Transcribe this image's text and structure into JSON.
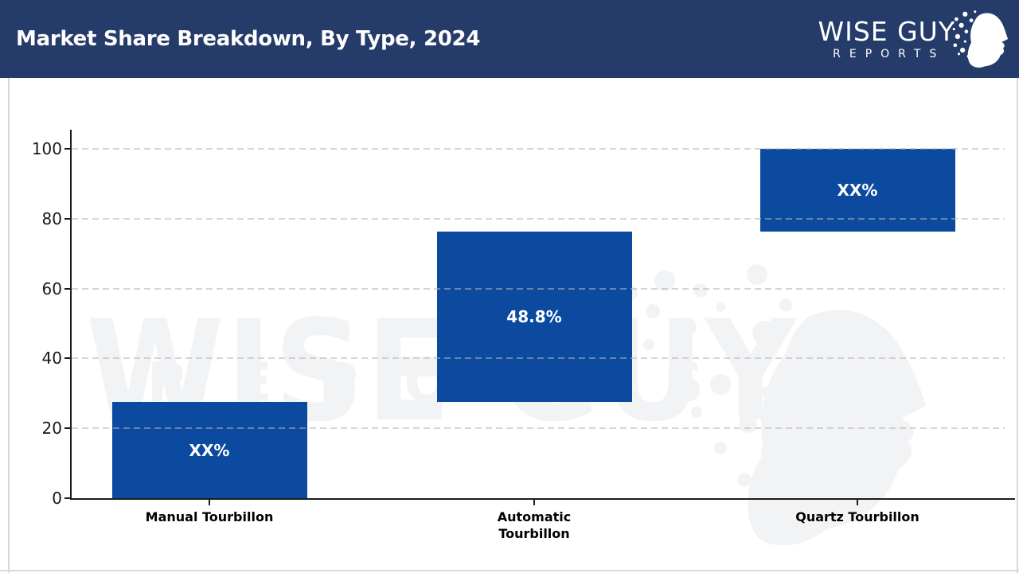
{
  "header": {
    "title": "Market Share Breakdown, By Type, 2024",
    "brand": {
      "name": "WISE GUY",
      "tagline": "REPORTS"
    }
  },
  "watermark": {
    "line1": "WISE GUY",
    "line2": "REPORTS"
  },
  "chart_data": {
    "type": "bar",
    "variant": "floating-segment-waterfall",
    "title": "Market Share Breakdown, By Type, 2024",
    "xlabel": "",
    "ylabel": "",
    "ylim": [
      0,
      105.5
    ],
    "y_ticks": [
      0,
      20,
      40,
      60,
      80,
      100
    ],
    "grid": "horizontal-dashed",
    "legend": "none",
    "categories": [
      "Manual Tourbillon",
      "Automatic\nTourbillon",
      "Quartz Tourbillon"
    ],
    "segments": [
      {
        "category": "Manual Tourbillon",
        "start": 0,
        "end": 27.5,
        "value": 27.5,
        "label": "XX%"
      },
      {
        "category": "Automatic\nTourbillon",
        "start": 27.5,
        "end": 76.3,
        "value": 48.8,
        "label": "48.8%"
      },
      {
        "category": "Quartz Tourbillon",
        "start": 76.3,
        "end": 100,
        "value": 23.7,
        "label": "XX%"
      }
    ]
  },
  "colors": {
    "header_bg": "#253b69",
    "bar": "#0b4a9e",
    "bar_label": "#ffffff",
    "axis": "#1c1c1c",
    "gridline": "#d9d9d9",
    "watermark": "#f2f3f5",
    "frame_line": "#d9d9d9"
  }
}
